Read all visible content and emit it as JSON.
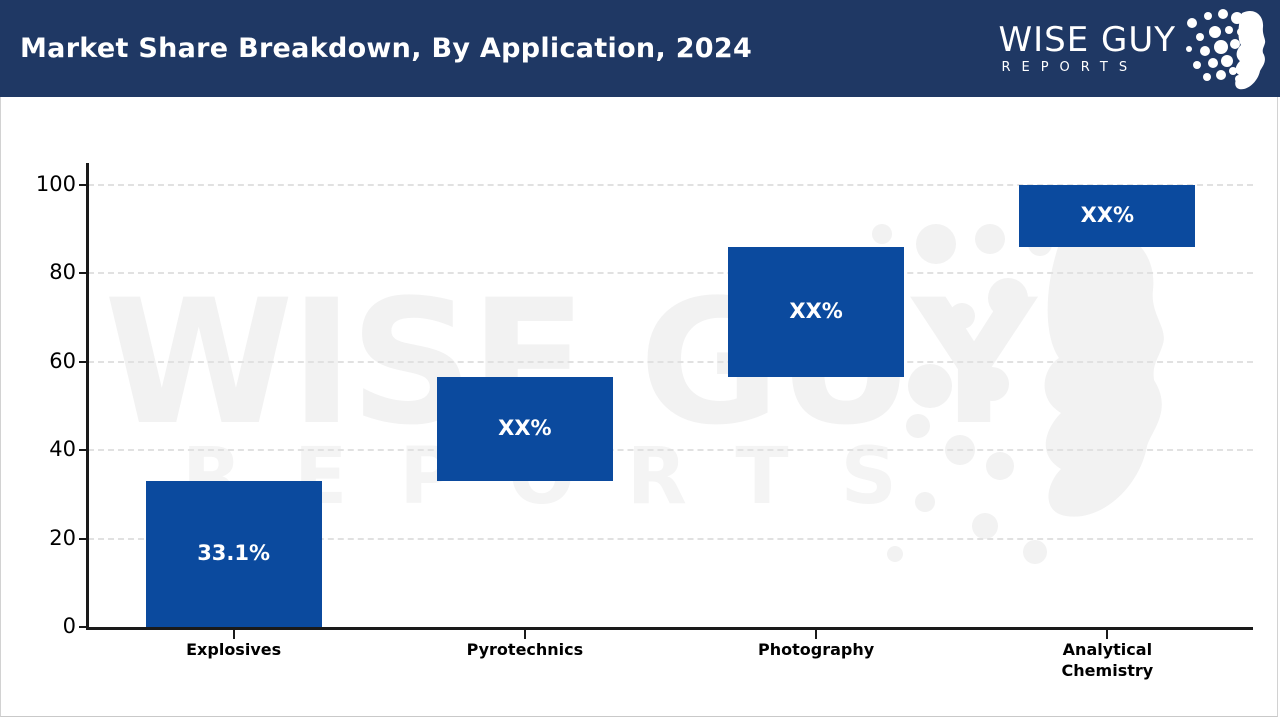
{
  "header": {
    "title": "Market Share Breakdown, By Application, 2024"
  },
  "logo": {
    "line1": "WISE GUY",
    "line2": "REPORTS",
    "icon": "head-profile-dots-icon",
    "colors": {
      "background": "#1f3864",
      "foreground": "#ffffff"
    }
  },
  "watermark": {
    "line1": "WISE GUY",
    "line2": "REPORTS",
    "icon": "head-profile-dots-watermark",
    "color": "#f2f2f2"
  },
  "chart_data": {
    "type": "bar",
    "subtype": "floating-waterfall",
    "title": "Market Share Breakdown, By Application, 2024",
    "xlabel": "",
    "ylabel": "",
    "ylim": [
      0,
      100
    ],
    "yticks": [
      0,
      20,
      40,
      60,
      80,
      100
    ],
    "grid": "horizontal-dashed",
    "legend": "none",
    "bar_color": "#0b4a9e",
    "categories": [
      "Explosives",
      "Pyrotechnics",
      "Photography",
      "Analytical Chemistry"
    ],
    "bars": [
      {
        "category": "Explosives",
        "start": 0,
        "end": 33.1,
        "label": "33.1%"
      },
      {
        "category": "Pyrotechnics",
        "start": 33.1,
        "end": 56.5,
        "label": "XX%"
      },
      {
        "category": "Photography",
        "start": 56.5,
        "end": 86,
        "label": "XX%"
      },
      {
        "category": "Analytical Chemistry",
        "start": 86,
        "end": 100,
        "label": "XX%"
      }
    ]
  }
}
